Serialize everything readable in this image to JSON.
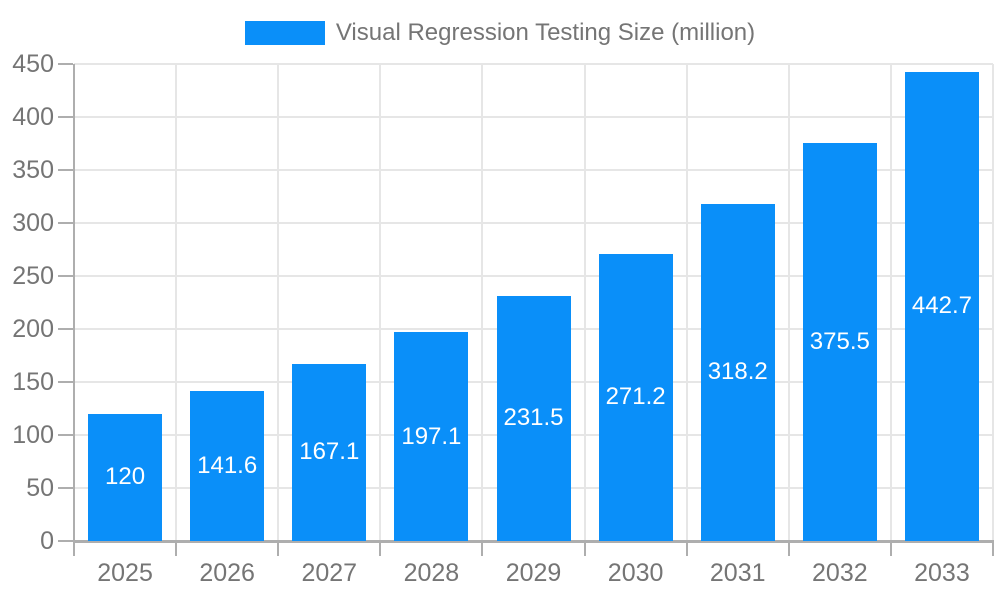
{
  "chart": {
    "legend_label": "Visual Regression Testing Size (million)"
  },
  "chart_data": {
    "type": "bar",
    "title": "Visual Regression Testing Size (million)",
    "series_name": "Visual Regression Testing Size (million)",
    "categories": [
      "2025",
      "2026",
      "2027",
      "2028",
      "2029",
      "2030",
      "2031",
      "2032",
      "2033"
    ],
    "values": [
      120,
      141.6,
      167.1,
      197.1,
      231.5,
      271.2,
      318.2,
      375.5,
      442.7
    ],
    "value_labels": [
      "120",
      "141.6",
      "167.1",
      "197.1",
      "231.5",
      "271.2",
      "318.2",
      "375.5",
      "442.7"
    ],
    "xlabel": "",
    "ylabel": "",
    "ylim": [
      0,
      450
    ],
    "ytick_step": 50,
    "ytick_labels": [
      "0",
      "50",
      "100",
      "150",
      "200",
      "250",
      "300",
      "350",
      "400",
      "450"
    ],
    "grid": true,
    "legend_position": "top-center",
    "bar_color": "#0a8ff9",
    "value_label_color": "#ffffff",
    "grid_color": "#e6e6e6",
    "axis_color": "#aeaeae",
    "label_color": "#757575",
    "background_color": "#ffffff"
  }
}
